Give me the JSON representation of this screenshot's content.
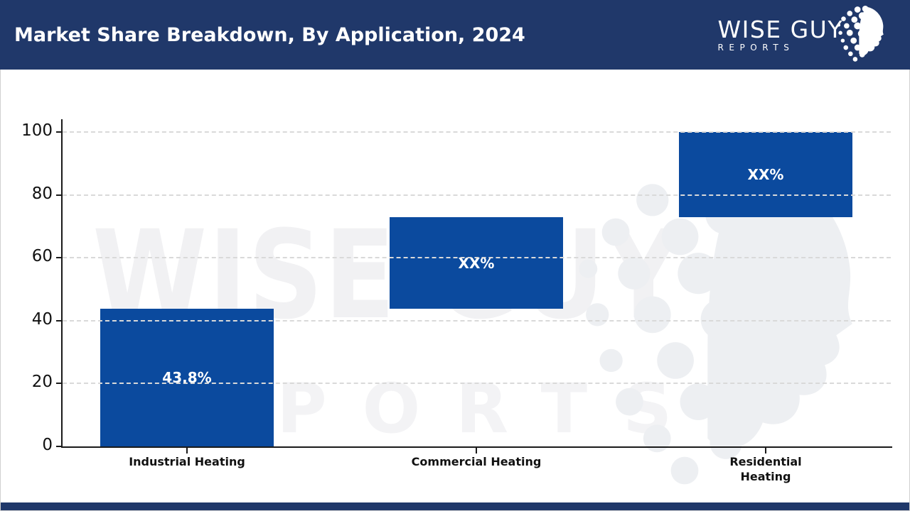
{
  "header": {
    "title": "Market Share Breakdown, By Application, 2024",
    "logo": {
      "brand_line1": "WISE GUY",
      "brand_line2": "REPORTS"
    }
  },
  "watermark": {
    "line1": "WISE GUY",
    "line2": "REPORTS"
  },
  "chart_data": {
    "type": "bar",
    "variant": "floating-segment-waterfall",
    "title": "Market Share Breakdown, By Application, 2024",
    "categories": [
      "Industrial Heating",
      "Commercial Heating",
      "Residential Heating"
    ],
    "tick_labels": [
      "Industrial Heating",
      "Commercial Heating",
      "Residential\nHeating"
    ],
    "segments": [
      {
        "category": "Industrial Heating",
        "start": 0,
        "end": 43.8,
        "label": "43.8%"
      },
      {
        "category": "Commercial Heating",
        "start": 43.8,
        "end": 72.8,
        "label": "XX%"
      },
      {
        "category": "Residential Heating",
        "start": 72.8,
        "end": 100,
        "label": "XX%"
      }
    ],
    "yticks": [
      0,
      20,
      40,
      60,
      80,
      100
    ],
    "ylim": [
      0,
      105
    ],
    "grid": {
      "horizontal": true,
      "style": "dashed",
      "color": "#d9d9d9",
      "above_bars": true
    },
    "legend": "none",
    "colors": {
      "bar": "#0b4a9e",
      "bar_label": "#ffffff",
      "axis": "#1a1a1a",
      "header_bg": "#20386a",
      "watermark": "#f1f1f3"
    }
  }
}
